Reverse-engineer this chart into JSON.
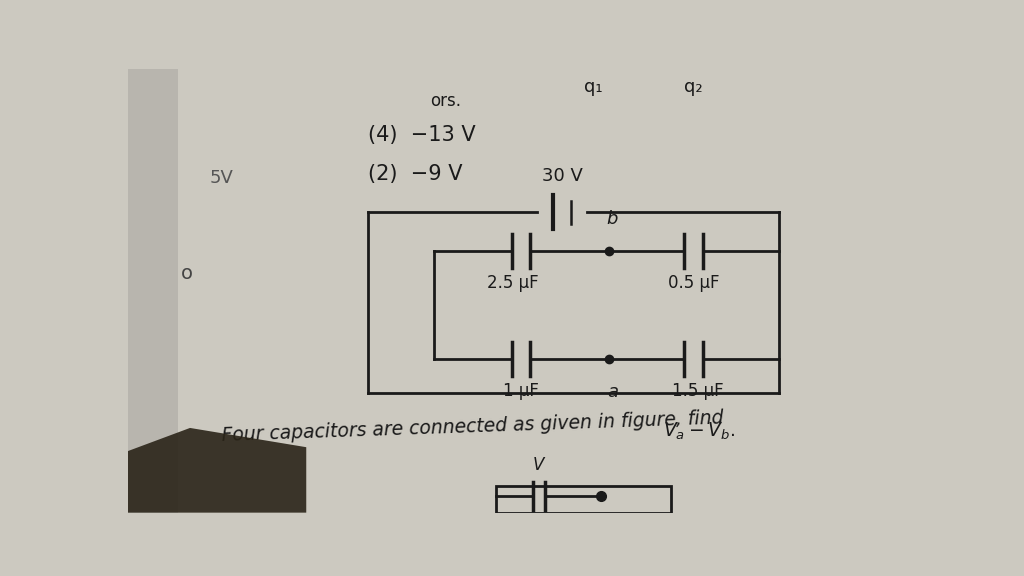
{
  "bg_color": "#ccc9c0",
  "text_color": "#1a1a1a",
  "cap1_label": "1 μF",
  "cap2_label": "1.5 μF",
  "cap3_label": "2.5 μF",
  "cap4_label": "0.5 μF",
  "voltage_label": "30 V",
  "node_a": "a",
  "node_b": "b",
  "answer2": "(2)  −9 V",
  "answer4": "(4)  −13 V",
  "partial_left_v": "V",
  "q1_label": "q₁",
  "q2_label": "q₂",
  "ors_text": "ors.",
  "question_line1": "Four capacitors are connected as given in figure, find ",
  "question_va_vb": "$V_a - V_b.$",
  "left_shadow_color": "#b0aca3",
  "dark_shadow_color": "#2a2418",
  "top_partial_color": "#b8b4ac"
}
